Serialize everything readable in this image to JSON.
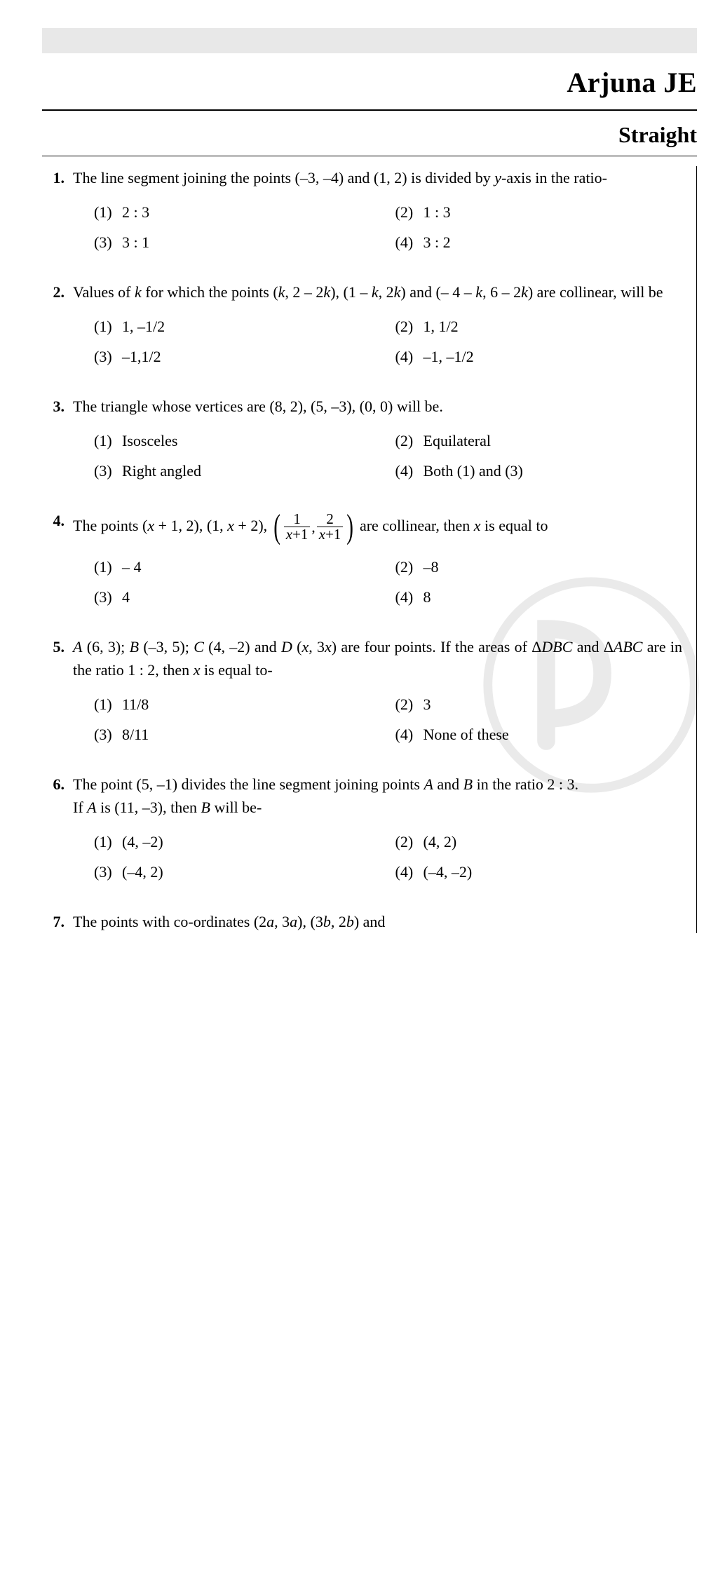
{
  "header": {
    "title_main": "Arjuna JE",
    "title_sub": "Straight"
  },
  "questions": [
    {
      "num": "1.",
      "stem_parts": [
        "The line segment joining the points (–3, –4) and (1, 2) is divided by ",
        "y",
        "-axis in the ratio-"
      ],
      "options": [
        {
          "label": "(1)",
          "text": "2 : 3"
        },
        {
          "label": "(2)",
          "text": "1 : 3"
        },
        {
          "label": "(3)",
          "text": "3 : 1"
        },
        {
          "label": "(4)",
          "text": "3 : 2"
        }
      ]
    },
    {
      "num": "2.",
      "stem_parts": [
        "Values of ",
        "k",
        " for which the points (",
        "k",
        ", 2 – 2",
        "k",
        "), (1 – ",
        "k",
        ", 2",
        "k",
        ") and (– 4 – ",
        "k",
        ", 6 – 2",
        "k",
        ") are collinear, will be"
      ],
      "options": [
        {
          "label": "(1)",
          "text": "1, –1/2"
        },
        {
          "label": "(2)",
          "text": "1, 1/2"
        },
        {
          "label": "(3)",
          "text": "–1,1/2"
        },
        {
          "label": "(4)",
          "text": "–1, –1/2"
        }
      ]
    },
    {
      "num": "3.",
      "stem": "The triangle whose vertices are (8, 2), (5, –3), (0, 0) will be.",
      "options": [
        {
          "label": "(1)",
          "text": "Isosceles"
        },
        {
          "label": "(2)",
          "text": "Equilateral"
        },
        {
          "label": "(3)",
          "text": "Right angled"
        },
        {
          "label": "(4)",
          "text": "Both (1) and (3)"
        }
      ]
    },
    {
      "num": "4.",
      "stem_a": "The points (",
      "stem_b": " + 1, 2), (1, ",
      "stem_c": " + 2), ",
      "stem_d": " are collinear, then ",
      "stem_e": " is equal to",
      "frac1_num": "1",
      "frac1_den_a": "x",
      "frac1_den_b": "+1",
      "frac2_num": "2",
      "frac2_den_a": "x",
      "frac2_den_b": "+1",
      "var_x": "x",
      "options": [
        {
          "label": "(1)",
          "text": "– 4"
        },
        {
          "label": "(2)",
          "text": "–8"
        },
        {
          "label": "(3)",
          "text": "4"
        },
        {
          "label": "(4)",
          "text": "8"
        }
      ]
    },
    {
      "num": "5.",
      "stem_parts_rich": [
        {
          "it": true,
          "t": "A"
        },
        {
          "t": " (6, 3); "
        },
        {
          "it": true,
          "t": "B"
        },
        {
          "t": " (–3, 5); "
        },
        {
          "it": true,
          "t": "C"
        },
        {
          "t": " (4, –2) and "
        },
        {
          "it": true,
          "t": "D"
        },
        {
          "t": " ("
        },
        {
          "it": true,
          "t": "x"
        },
        {
          "t": ", 3"
        },
        {
          "it": true,
          "t": "x"
        },
        {
          "t": ") are four points. If the areas of Δ"
        },
        {
          "it": true,
          "t": "DBC"
        },
        {
          "t": " and Δ"
        },
        {
          "it": true,
          "t": "ABC"
        },
        {
          "t": " are in the ratio 1 : 2, then "
        },
        {
          "it": true,
          "t": "x"
        },
        {
          "t": " is equal to-"
        }
      ],
      "options": [
        {
          "label": "(1)",
          "text": "11/8"
        },
        {
          "label": "(2)",
          "text": "3"
        },
        {
          "label": "(3)",
          "text": "8/11"
        },
        {
          "label": "(4)",
          "text": "None of these"
        }
      ]
    },
    {
      "num": "6.",
      "stem_parts_rich": [
        {
          "t": "The point (5, –1) divides the line segment joining points "
        },
        {
          "it": true,
          "t": "A"
        },
        {
          "t": " and "
        },
        {
          "it": true,
          "t": "B"
        },
        {
          "t": " in the ratio 2 : 3."
        }
      ],
      "stem2_parts_rich": [
        {
          "t": "If "
        },
        {
          "it": true,
          "t": "A"
        },
        {
          "t": " is (11, –3), then "
        },
        {
          "it": true,
          "t": "B"
        },
        {
          "t": " will be-"
        }
      ],
      "options": [
        {
          "label": "(1)",
          "text": "(4, –2)"
        },
        {
          "label": "(2)",
          "text": "(4, 2)"
        },
        {
          "label": "(3)",
          "text": "(–4, 2)"
        },
        {
          "label": "(4)",
          "text": "(–4, –2)"
        }
      ]
    },
    {
      "num": "7.",
      "stem_parts_rich": [
        {
          "t": "The points with co-ordinates (2"
        },
        {
          "it": true,
          "t": "a"
        },
        {
          "t": ", 3"
        },
        {
          "it": true,
          "t": "a"
        },
        {
          "t": "), (3"
        },
        {
          "it": true,
          "t": "b"
        },
        {
          "t": ", 2"
        },
        {
          "it": true,
          "t": "b"
        },
        {
          "t": ") and"
        }
      ]
    }
  ]
}
